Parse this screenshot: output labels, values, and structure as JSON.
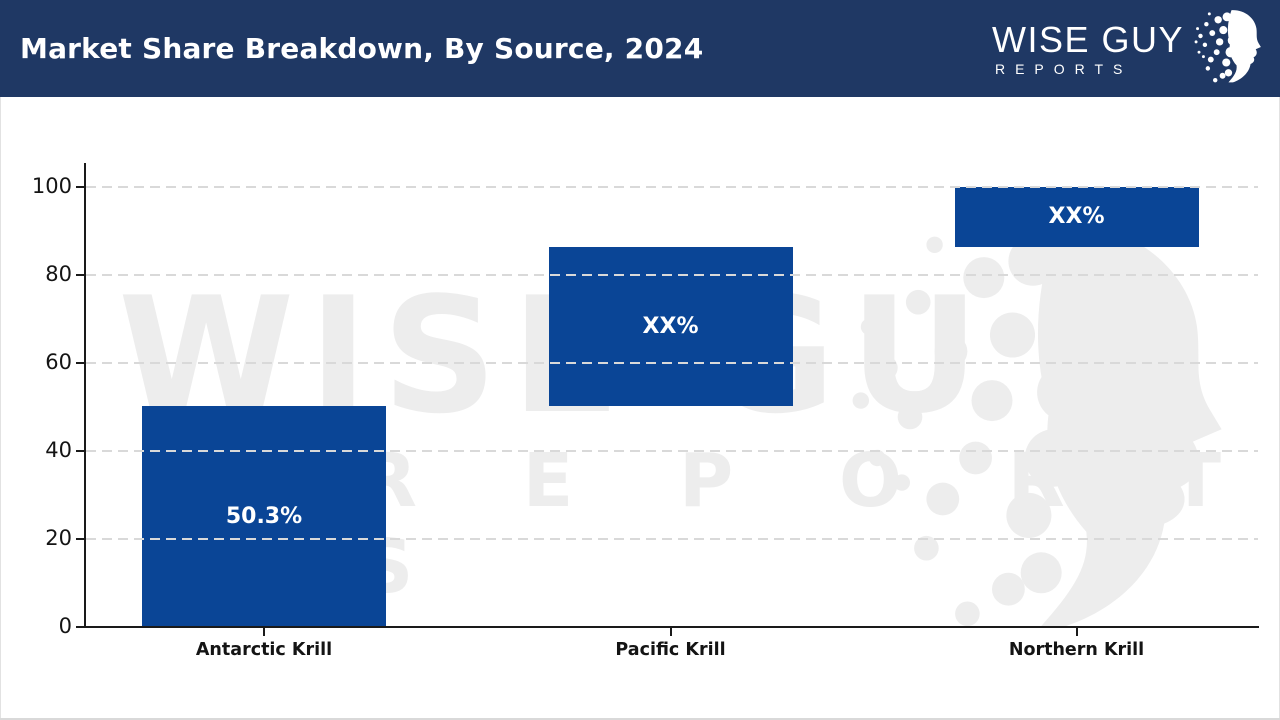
{
  "header": {
    "title": "Market Share Breakdown, By Source, 2024",
    "bg_color": "#1f3864",
    "brand": {
      "line1": "WISE GUY",
      "line2": "REPORTS"
    }
  },
  "watermark": {
    "line1": "WISE GU Y",
    "line2": "R E P O R T S",
    "color": "#ededed"
  },
  "chart_data": {
    "type": "bar",
    "subtype": "waterfall",
    "title": "Market Share Breakdown, By Source, 2024",
    "xlabel": "",
    "ylabel": "",
    "categories": [
      "Antarctic Krill",
      "Pacific Krill",
      "Northern Krill"
    ],
    "segments": [
      {
        "category": "Antarctic Krill",
        "start": 0,
        "end": 50.3,
        "label": "50.3%"
      },
      {
        "category": "Pacific Krill",
        "start": 50.3,
        "end": 86.4,
        "label": "XX%"
      },
      {
        "category": "Northern Krill",
        "start": 86.4,
        "end": 100,
        "label": "XX%"
      }
    ],
    "yticks": [
      0,
      20,
      40,
      60,
      80,
      100
    ],
    "ylim": [
      0,
      105.5
    ],
    "grid": "horizontal dashed, drawn above bars",
    "legend": "none",
    "bar_color": "#0a4596",
    "bar_label_color": "#ffffff",
    "axis_color": "#1a1a1a",
    "grid_color": "#d9d9d9"
  }
}
